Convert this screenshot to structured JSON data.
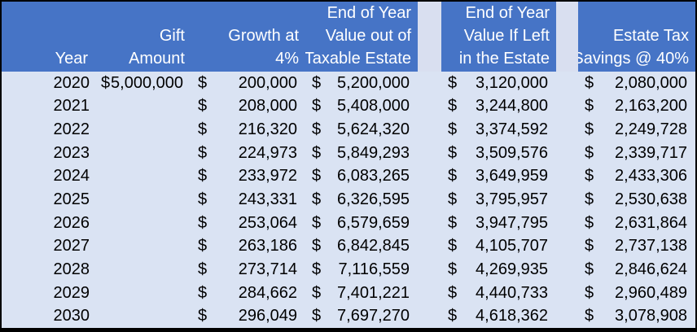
{
  "table": {
    "currency_symbol": "$",
    "columns": [
      {
        "id": "year",
        "header_lines": [
          "",
          "",
          "Year"
        ]
      },
      {
        "id": "gift",
        "header_lines": [
          "",
          "Gift",
          "Amount"
        ]
      },
      {
        "id": "growth",
        "header_lines": [
          "",
          "Growth at",
          "4%"
        ]
      },
      {
        "id": "eoy_out",
        "header_lines": [
          "End of Year",
          "Value out of",
          "Taxable Estate"
        ]
      },
      {
        "id": "eoy_left",
        "header_lines": [
          "End of Year",
          "Value If Left",
          "in the Estate"
        ]
      },
      {
        "id": "savings",
        "header_lines": [
          "",
          "Estate Tax",
          "Savings @ 40%"
        ]
      }
    ],
    "rows": [
      {
        "year": "2020",
        "gift": "5,000,000",
        "growth": "200,000",
        "eoy_out": "5,200,000",
        "eoy_left": "3,120,000",
        "savings": "2,080,000"
      },
      {
        "year": "2021",
        "gift": "",
        "growth": "208,000",
        "eoy_out": "5,408,000",
        "eoy_left": "3,244,800",
        "savings": "2,163,200"
      },
      {
        "year": "2022",
        "gift": "",
        "growth": "216,320",
        "eoy_out": "5,624,320",
        "eoy_left": "3,374,592",
        "savings": "2,249,728"
      },
      {
        "year": "2023",
        "gift": "",
        "growth": "224,973",
        "eoy_out": "5,849,293",
        "eoy_left": "3,509,576",
        "savings": "2,339,717"
      },
      {
        "year": "2024",
        "gift": "",
        "growth": "233,972",
        "eoy_out": "6,083,265",
        "eoy_left": "3,649,959",
        "savings": "2,433,306"
      },
      {
        "year": "2025",
        "gift": "",
        "growth": "243,331",
        "eoy_out": "6,326,595",
        "eoy_left": "3,795,957",
        "savings": "2,530,638"
      },
      {
        "year": "2026",
        "gift": "",
        "growth": "253,064",
        "eoy_out": "6,579,659",
        "eoy_left": "3,947,795",
        "savings": "2,631,864"
      },
      {
        "year": "2027",
        "gift": "",
        "growth": "263,186",
        "eoy_out": "6,842,845",
        "eoy_left": "4,105,707",
        "savings": "2,737,138"
      },
      {
        "year": "2028",
        "gift": "",
        "growth": "273,714",
        "eoy_out": "7,116,559",
        "eoy_left": "4,269,935",
        "savings": "2,846,624"
      },
      {
        "year": "2029",
        "gift": "",
        "growth": "284,662",
        "eoy_out": "7,401,221",
        "eoy_left": "4,440,733",
        "savings": "2,960,489"
      },
      {
        "year": "2030",
        "gift": "",
        "growth": "296,049",
        "eoy_out": "7,697,270",
        "eoy_left": "4,618,362",
        "savings": "3,078,908"
      }
    ]
  },
  "colors": {
    "header_bg": "#4674c6",
    "header_text": "#ffffff",
    "row_bg": "#dae3f3",
    "gap_bg": "#d9dff0",
    "data_text": "#000000",
    "frame_bg": "#000000"
  }
}
